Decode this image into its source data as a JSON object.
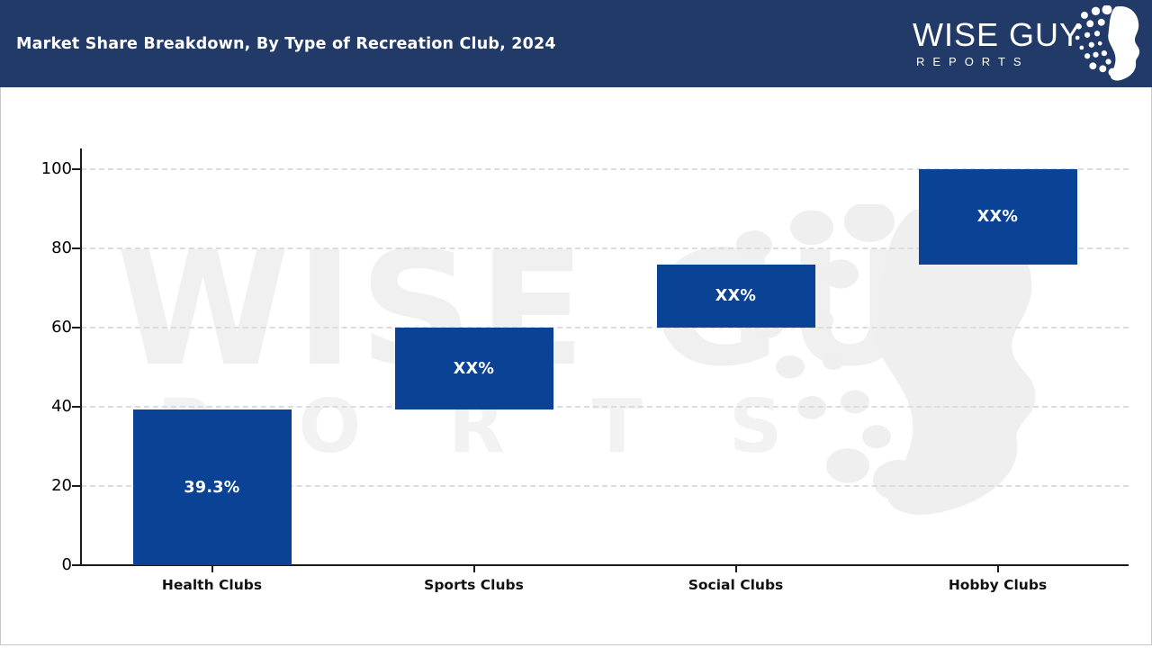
{
  "header": {
    "title": "Market Share Breakdown, By Type of Recreation Club, 2024",
    "bg_color": "#223a68",
    "logo": {
      "brand": "WISE GUY",
      "sub": "REPORTS",
      "head_icon": "dotted-head-icon"
    }
  },
  "watermark": {
    "big_text": "WISE GU",
    "sub_text": "P O R T S"
  },
  "chart_data": {
    "type": "bar",
    "subtype": "waterfall",
    "title": "Market Share Breakdown, By Type of Recreation Club, 2024",
    "categories": [
      "Health Clubs",
      "Sports Clubs",
      "Social Clubs",
      "Hobby Clubs"
    ],
    "segments": [
      {
        "category": "Health Clubs",
        "start": 0,
        "end": 39.3,
        "label": "39.3%"
      },
      {
        "category": "Sports Clubs",
        "start": 39.3,
        "end": 60,
        "label": "XX%"
      },
      {
        "category": "Social Clubs",
        "start": 60,
        "end": 76,
        "label": "XX%"
      },
      {
        "category": "Hobby Clubs",
        "start": 76,
        "end": 100,
        "label": "XX%"
      }
    ],
    "xlabel": "",
    "ylabel": "",
    "ylim": [
      0,
      105
    ],
    "yticks": [
      0,
      20,
      40,
      60,
      80,
      100
    ],
    "grid": {
      "axis": "y",
      "style": "dashed",
      "color": "#dcdcdc"
    },
    "legend": "none",
    "bar_color": "#0a4296",
    "bar_label_color": "#ffffff",
    "axis_color": "#1a1a1a"
  }
}
